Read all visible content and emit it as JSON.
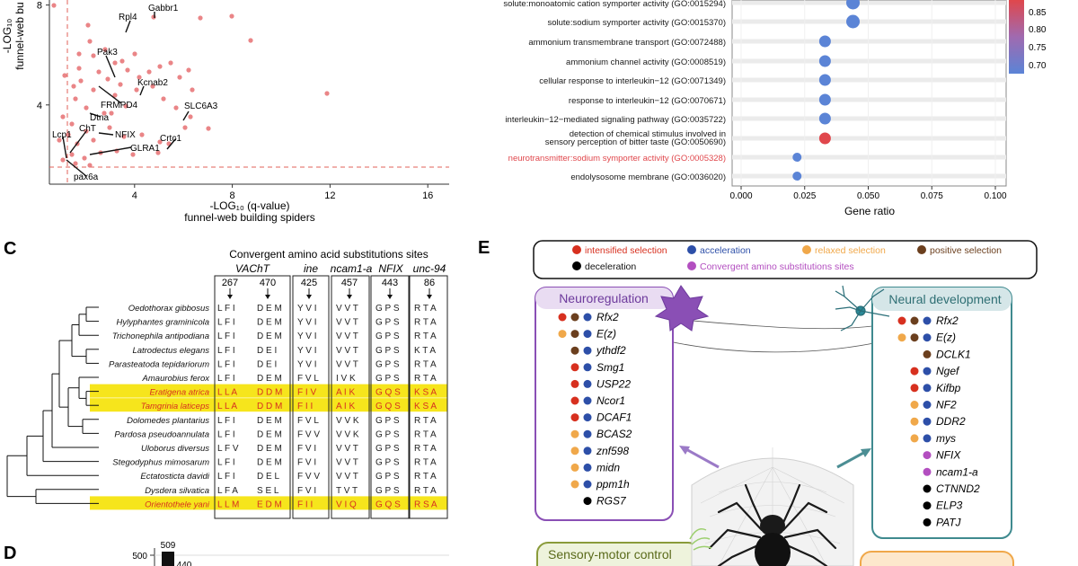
{
  "volcano": {
    "xlabel": "-LOG₁₀ (q-value)",
    "xlabel2": "funnel-web building spiders",
    "ylabel": "-LOG₁₀",
    "ylabel2": "funnel-web bu",
    "xticks": [
      "4",
      "8",
      "12",
      "16"
    ],
    "yticks": [
      "8",
      "4"
    ],
    "genes": [
      "Gabbr1",
      "Rpl4",
      "Pak3",
      "Kcnab2",
      "FRMPD4",
      "SLC6A3",
      "Dtna",
      "ChT",
      "NFIX",
      "Lcp1",
      "Crtc1",
      "GLRA1",
      "pax6a"
    ]
  },
  "chart_data": {
    "type": "scatter",
    "title": "",
    "xlabel": "Gene ratio",
    "ylabel": "",
    "xlim": [
      0,
      0.1
    ],
    "xticks": [
      "0.000",
      "0.025",
      "0.050",
      "0.075",
      "0.100"
    ],
    "colorbar_ticks": [
      "0.85",
      "0.80",
      "0.75",
      "0.70"
    ],
    "categories": [
      "solute:monoatomic cation symporter activity (GO:0015294)",
      "solute:sodium symporter activity (GO:0015370)",
      "ammonium transmembrane transport (GO:0072488)",
      "ammonium channel activity (GO:0008519)",
      "cellular response to interleukin−12 (GO:0071349)",
      "response to interleukin−12 (GO:0070671)",
      "interleukin−12−mediated signaling pathway (GO:0035722)",
      "detection of chemical stimulus involved in",
      "sensory perception of bitter taste (GO:0050690)",
      "neurotransmitter:sodium symporter activity (GO:0005328)",
      "endolysosome membrane (GO:0036020)"
    ],
    "values": [
      0.044,
      0.044,
      0.033,
      0.033,
      0.033,
      0.033,
      0.033,
      0.033,
      null,
      0.022,
      0.022
    ],
    "colors": [
      "#5b84d6",
      "#5b84d6",
      "#5b84d6",
      "#5b84d6",
      "#5b84d6",
      "#5b84d6",
      "#5b84d6",
      "#e0474c",
      null,
      "#5b84d6",
      "#5b84d6"
    ]
  },
  "panel_c": {
    "letter": "C",
    "title": "Convergent amino acid substitutions sites",
    "genes": [
      "VAChT",
      "ine",
      "ncam1-a",
      "NFIX",
      "unc-94"
    ],
    "positions": [
      "267",
      "470",
      "425",
      "457",
      "443",
      "86"
    ],
    "species": [
      "Oedothorax gibbosus",
      "Hylyphantes graminicola",
      "Trichonephila antipodiana",
      "Latrodectus elegans",
      "Parasteatoda tepidariorum",
      "Amaurobius ferox",
      "Eratigena atrica",
      "Tamgrinia laticeps",
      "Dolomedes plantarius",
      "Pardosa pseudoannulata",
      "Uloborus diversus",
      "Stegodyphus mimosarum",
      "Ectatosticta davidi",
      "Dysdera silvatica",
      "Orientothele yani"
    ],
    "seqs": [
      [
        "L F I",
        "D E M",
        "Y V I",
        "V V T",
        "G P S",
        "R T A"
      ],
      [
        "L F I",
        "D E M",
        "Y V I",
        "V V T",
        "G P S",
        "R T A"
      ],
      [
        "L F I",
        "D E M",
        "Y V I",
        "V V T",
        "G P S",
        "R T A"
      ],
      [
        "L F I",
        "D E I",
        "Y V I",
        "V V T",
        "G P S",
        "K T A"
      ],
      [
        "L F I",
        "D E I",
        "Y V I",
        "V V T",
        "G P S",
        "R T A"
      ],
      [
        "L F I",
        "D E M",
        "F V L",
        "I V K",
        "G P S",
        "R T A"
      ],
      [
        "L L A",
        "D D M",
        "F I V",
        "A I K",
        "G Q S",
        "K S A"
      ],
      [
        "L L A",
        "D D M",
        "F I I",
        "A I K",
        "G Q S",
        "K S A"
      ],
      [
        "L F I",
        "D E M",
        "F V L",
        "V V K",
        "G P S",
        "R T A"
      ],
      [
        "L F I",
        "D E M",
        "F V V",
        "V V K",
        "G P S",
        "R T A"
      ],
      [
        "L F V",
        "D E M",
        "F V I",
        "V V T",
        "G P S",
        "R T A"
      ],
      [
        "L F I",
        "D E M",
        "F V I",
        "V V T",
        "G P S",
        "R T A"
      ],
      [
        "L F I",
        "D E L",
        "F V V",
        "V V T",
        "G P S",
        "R T A"
      ],
      [
        "L F A",
        "S E L",
        "F V I",
        "T V T",
        "G P S",
        "R T A"
      ],
      [
        "L L M",
        "E D M",
        "F I I",
        "V I Q",
        "G Q S",
        "R S A"
      ]
    ]
  },
  "panel_d": {
    "letter": "D",
    "ytick": "500",
    "values": [
      509,
      440
    ]
  },
  "panel_e": {
    "letter": "E",
    "legend": [
      {
        "label": "intensified selection",
        "color": "#d7301f"
      },
      {
        "label": "acceleration",
        "color": "#2d4fa8"
      },
      {
        "label": "relaxed selection",
        "color": "#f0a84a"
      },
      {
        "label": "positive selection",
        "color": "#6b3f1e"
      },
      {
        "label": "deceleration",
        "color": "#000000"
      },
      {
        "label": "Convergent amino substitutions sites",
        "color": "#b34fc0"
      }
    ],
    "neuroreg_title": "Neuroregulation",
    "neuraldev_title": "Neural development",
    "sensory_title": "Sensory-motor control",
    "neuroreg_genes": [
      {
        "name": "Rfx2",
        "dots": [
          "#d7301f",
          "#6b3f1e",
          "#2d4fa8"
        ]
      },
      {
        "name": "E(z)",
        "dots": [
          "#f0a84a",
          "#6b3f1e",
          "#2d4fa8"
        ]
      },
      {
        "name": "ythdf2",
        "dots": [
          "#6b3f1e",
          "#2d4fa8"
        ]
      },
      {
        "name": "Smg1",
        "dots": [
          "#d7301f",
          "#2d4fa8"
        ]
      },
      {
        "name": "USP22",
        "dots": [
          "#d7301f",
          "#2d4fa8"
        ]
      },
      {
        "name": "Ncor1",
        "dots": [
          "#d7301f",
          "#2d4fa8"
        ]
      },
      {
        "name": "DCAF1",
        "dots": [
          "#d7301f",
          "#2d4fa8"
        ]
      },
      {
        "name": "BCAS2",
        "dots": [
          "#f0a84a",
          "#2d4fa8"
        ]
      },
      {
        "name": "znf598",
        "dots": [
          "#f0a84a",
          "#2d4fa8"
        ]
      },
      {
        "name": "midn",
        "dots": [
          "#f0a84a",
          "#2d4fa8"
        ]
      },
      {
        "name": "ppm1h",
        "dots": [
          "#f0a84a",
          "#2d4fa8"
        ]
      },
      {
        "name": "RGS7",
        "dots": [
          "#000000"
        ]
      }
    ],
    "neuraldev_genes": [
      {
        "name": "Rfx2",
        "dots": [
          "#d7301f",
          "#6b3f1e",
          "#2d4fa8"
        ]
      },
      {
        "name": "E(z)",
        "dots": [
          "#f0a84a",
          "#6b3f1e",
          "#2d4fa8"
        ]
      },
      {
        "name": "DCLK1",
        "dots": [
          "#6b3f1e"
        ]
      },
      {
        "name": "Ngef",
        "dots": [
          "#d7301f",
          "#2d4fa8"
        ]
      },
      {
        "name": "Kifbp",
        "dots": [
          "#d7301f",
          "#2d4fa8"
        ]
      },
      {
        "name": "NF2",
        "dots": [
          "#f0a84a",
          "#2d4fa8"
        ]
      },
      {
        "name": "DDR2",
        "dots": [
          "#f0a84a",
          "#2d4fa8"
        ]
      },
      {
        "name": "mys",
        "dots": [
          "#f0a84a",
          "#2d4fa8"
        ]
      },
      {
        "name": "NFIX",
        "dots": [
          "#b34fc0"
        ]
      },
      {
        "name": "ncam1-a",
        "dots": [
          "#b34fc0"
        ]
      },
      {
        "name": "CTNND2",
        "dots": [
          "#000000"
        ]
      },
      {
        "name": "ELP3",
        "dots": [
          "#000000"
        ]
      },
      {
        "name": "PATJ",
        "dots": [
          "#000000"
        ]
      }
    ]
  }
}
